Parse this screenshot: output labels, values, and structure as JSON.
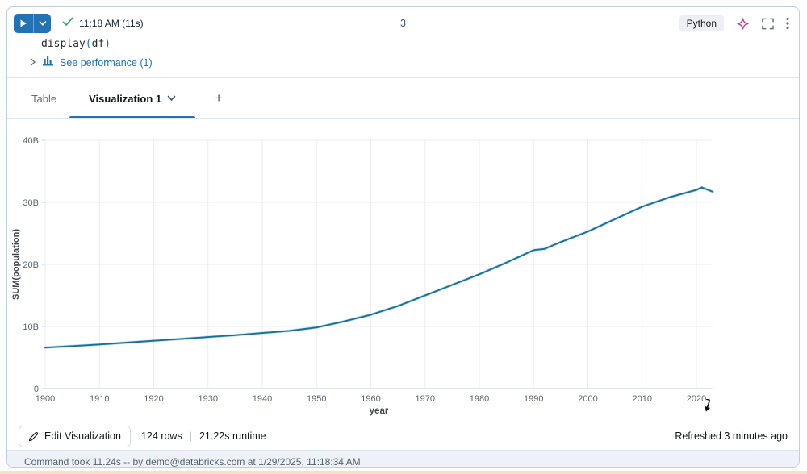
{
  "cell": {
    "run_time": "11:18 AM (11s)",
    "cell_number": "3",
    "language_badge": "Python",
    "code": {
      "fn": "display",
      "paren_open": "(",
      "arg": "df",
      "paren_close": ")"
    },
    "performance_link": "See performance (1)"
  },
  "icons": {
    "run": "play",
    "run_dropdown": "chevron-down",
    "status": "check",
    "assistant": "sparkle",
    "fullscreen": "corner-brackets",
    "menu": "kebab-vertical-dots",
    "performance": "bar-chart",
    "expand": "chevron-right",
    "edit": "pencil",
    "active_tab_dropdown": "chevron-down"
  },
  "tabs": {
    "table": "Table",
    "active": "Visualization 1",
    "add": "+"
  },
  "chart_data": {
    "type": "line",
    "title": "",
    "xlabel": "year",
    "ylabel": "SUM(population)",
    "xlim": [
      1900,
      2023
    ],
    "ylim": [
      0,
      40
    ],
    "grid": true,
    "legend": "none",
    "x_ticks": [
      1900,
      1910,
      1920,
      1930,
      1940,
      1950,
      1960,
      1970,
      1980,
      1990,
      2000,
      2010,
      2020
    ],
    "y_tick_values": [
      0,
      10,
      20,
      30,
      40
    ],
    "y_tick_labels": [
      "0",
      "10B",
      "20B",
      "30B",
      "40B"
    ],
    "line_color": "#1a6f96",
    "line_halo_color": "#8ecbe2",
    "series": [
      {
        "name": "SUM(population)",
        "units": "billions",
        "points": [
          [
            1900,
            6.6
          ],
          [
            1905,
            6.85
          ],
          [
            1910,
            7.1
          ],
          [
            1915,
            7.4
          ],
          [
            1920,
            7.7
          ],
          [
            1925,
            8.0
          ],
          [
            1930,
            8.3
          ],
          [
            1935,
            8.6
          ],
          [
            1940,
            8.95
          ],
          [
            1945,
            9.3
          ],
          [
            1950,
            9.85
          ],
          [
            1955,
            10.8
          ],
          [
            1960,
            11.9
          ],
          [
            1965,
            13.3
          ],
          [
            1970,
            15.0
          ],
          [
            1975,
            16.7
          ],
          [
            1980,
            18.4
          ],
          [
            1985,
            20.3
          ],
          [
            1988,
            21.5
          ],
          [
            1990,
            22.3
          ],
          [
            1992,
            22.5
          ],
          [
            1995,
            23.6
          ],
          [
            2000,
            25.3
          ],
          [
            2005,
            27.3
          ],
          [
            2010,
            29.3
          ],
          [
            2015,
            30.8
          ],
          [
            2020,
            32.0
          ],
          [
            2021,
            32.4
          ],
          [
            2023,
            31.7
          ]
        ]
      }
    ]
  },
  "bottom_bar": {
    "edit_button": "Edit Visualization",
    "rows": "124 rows",
    "divider": "|",
    "runtime": "21.22s runtime",
    "refreshed": "Refreshed 3 minutes ago"
  },
  "status_line": "Command took 11.24s -- by demo@databricks.com at 1/29/2025, 11:18:34 AM",
  "colors": {
    "accent": "#2272b4",
    "success_check": "#3ba273",
    "grid": "#ebedf0",
    "axis": "#c7ccd1"
  }
}
